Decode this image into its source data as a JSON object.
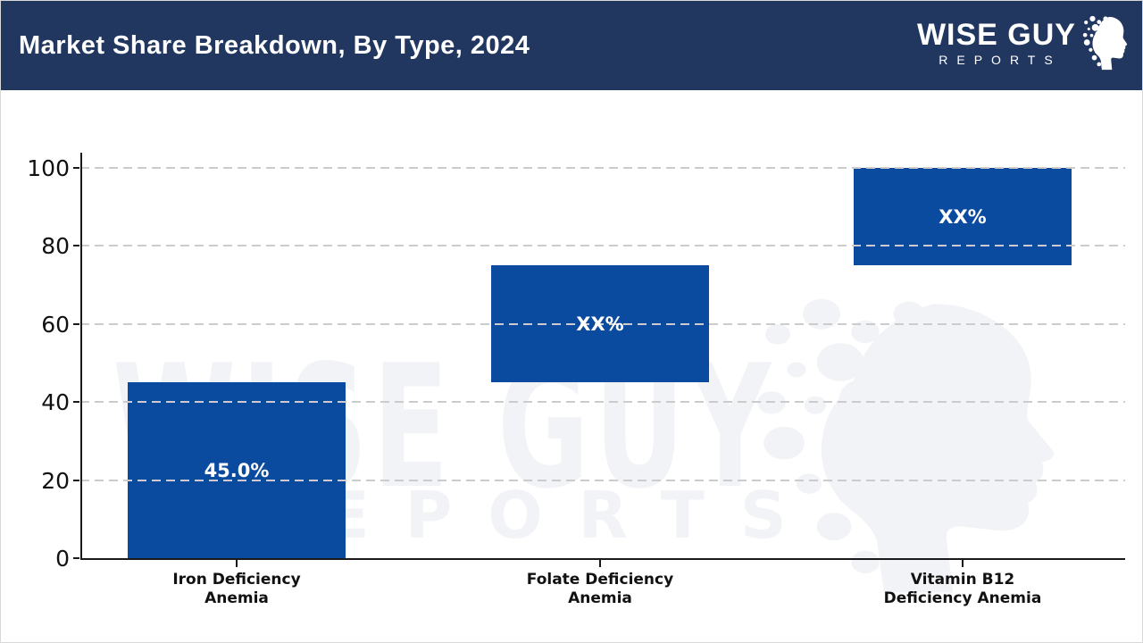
{
  "header": {
    "title": "Market Share Breakdown, By Type, 2024",
    "bg_color": "#213760",
    "logo": {
      "brand": "WISE GUY",
      "sub": "REPORTS"
    }
  },
  "watermark": {
    "brand": "WISE GUY",
    "sub": "REPORTS"
  },
  "chart_data": {
    "type": "bar",
    "subtype": "waterfall-breakdown",
    "title": "Market Share Breakdown, By Type, 2024",
    "categories": [
      "Iron Deficiency Anemia",
      "Folate Deficiency Anemia",
      "Vitamin B12 Deficiency Anemia"
    ],
    "category_lines": [
      [
        "Iron Deficiency",
        "Anemia"
      ],
      [
        "Folate Deficiency",
        "Anemia"
      ],
      [
        "Vitamin B12",
        "Deficiency Anemia"
      ]
    ],
    "segments": [
      {
        "category": "Iron Deficiency Anemia",
        "start": 0,
        "end": 45,
        "value": 45,
        "label": "45.0%"
      },
      {
        "category": "Folate Deficiency Anemia",
        "start": 45,
        "end": 75,
        "value": 30,
        "label": "XX%"
      },
      {
        "category": "Vitamin B12 Deficiency Anemia",
        "start": 75,
        "end": 100,
        "value": 25,
        "label": "XX%"
      }
    ],
    "ylim": [
      0,
      100
    ],
    "yticks": [
      0,
      20,
      40,
      60,
      80,
      100
    ],
    "xlabel": "",
    "ylabel": "",
    "grid": {
      "horizontal": true,
      "style": "dashed",
      "color": "#cccccc"
    },
    "legend": null,
    "bar_color": "#0a4ba0",
    "value_label_color": "#ffffff"
  }
}
